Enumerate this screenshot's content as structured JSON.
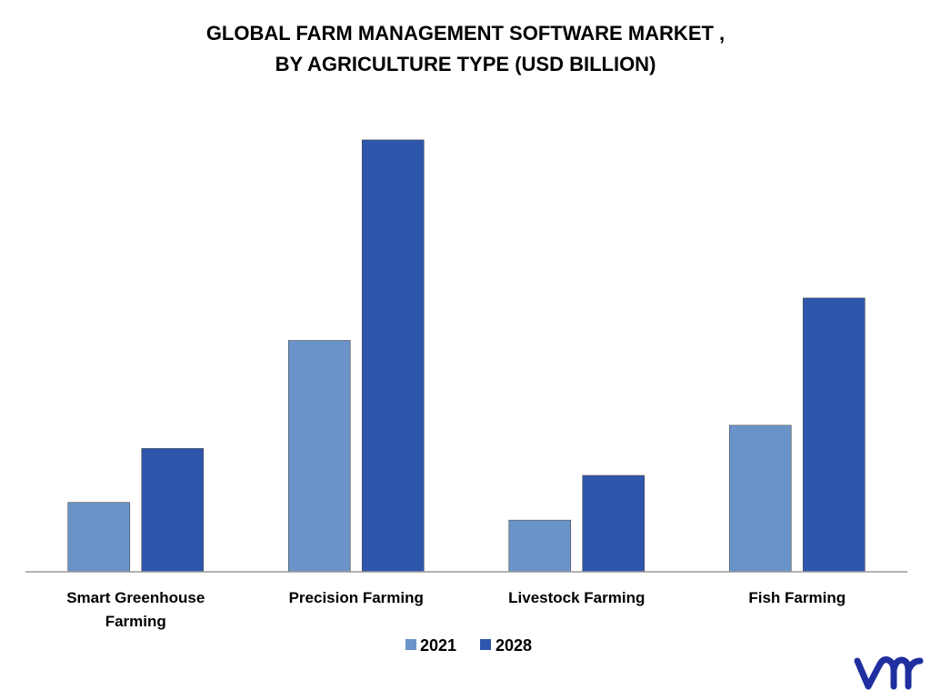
{
  "chart_data": {
    "type": "bar",
    "title": "GLOBAL FARM MANAGEMENT SOFTWARE MARKET ,",
    "subtitle": "BY AGRICULTURE TYPE (USD BILLION)",
    "xlabel": "",
    "ylabel": "",
    "categories": [
      [
        "Smart Greenhouse",
        "Farming"
      ],
      [
        "Precision Farming"
      ],
      [
        "Livestock Farming"
      ],
      [
        "Fish Farming"
      ]
    ],
    "series": [
      {
        "name": "2021",
        "color": "#6a94c9",
        "values": [
          0.9,
          3.0,
          0.67,
          1.9
        ]
      },
      {
        "name": "2028",
        "color": "#2f56ad",
        "values": [
          1.6,
          5.6,
          1.25,
          3.55
        ]
      }
    ],
    "ylim": [
      0,
      6.0
    ],
    "grid": false,
    "legend_position": "bottom",
    "axis_color": "#9a9a9a"
  },
  "logo": {
    "text": "vmr",
    "color": "#1f2f9f"
  }
}
